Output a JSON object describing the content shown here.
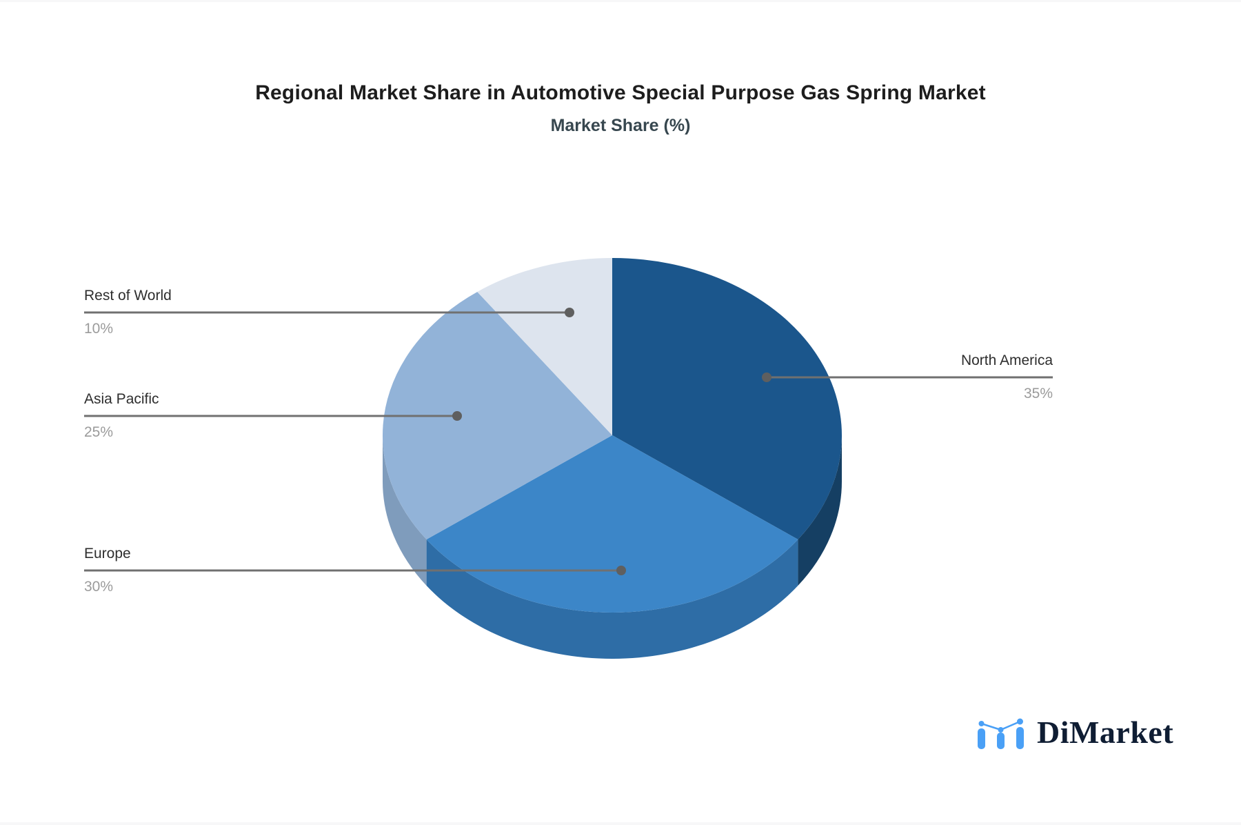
{
  "header": {
    "title": "Regional Market Share in Automotive Special Purpose Gas Spring Market",
    "subtitle": "Market Share (%)"
  },
  "chart_data": {
    "type": "pie",
    "effect": "3d",
    "title": "Regional Market Share in Automotive Special Purpose Gas Spring Market",
    "subtitle": "Market Share (%)",
    "unit": "%",
    "start_angle_deg": 0,
    "direction": "clockwise",
    "labels": [
      "North America",
      "Europe",
      "Asia Pacific",
      "Rest of World"
    ],
    "values": [
      35,
      30,
      25,
      10
    ],
    "display_percents": [
      "35%",
      "30%",
      "25%",
      "10%"
    ],
    "colors": [
      "#1b568c",
      "#3c86c8",
      "#92b3d8",
      "#dde4ee"
    ],
    "side_colors": [
      "#153f63",
      "#2e6da6",
      "#7f9cbc",
      "#c9d4e4"
    ],
    "legend_position": "callout-labels"
  },
  "callouts": [
    {
      "label": "North America",
      "percent": "35%",
      "side": "right"
    },
    {
      "label": "Europe",
      "percent": "30%",
      "side": "left"
    },
    {
      "label": "Asia Pacific",
      "percent": "25%",
      "side": "left"
    },
    {
      "label": "Rest of World",
      "percent": "10%",
      "side": "left"
    }
  ],
  "branding": {
    "name": "DiMarket",
    "icon": "bar-line-chart-icon",
    "icon_color": "#4aa0f6",
    "text_color": "#0f1d33"
  },
  "colors": {
    "connector": "#707070",
    "connector_dot": "#5f5f5f",
    "label_text": "#2e2e2e",
    "percent_text": "#9b9b9b",
    "title_text": "#1d1d1d",
    "subtitle_text": "#37474f",
    "background": "#ffffff"
  }
}
